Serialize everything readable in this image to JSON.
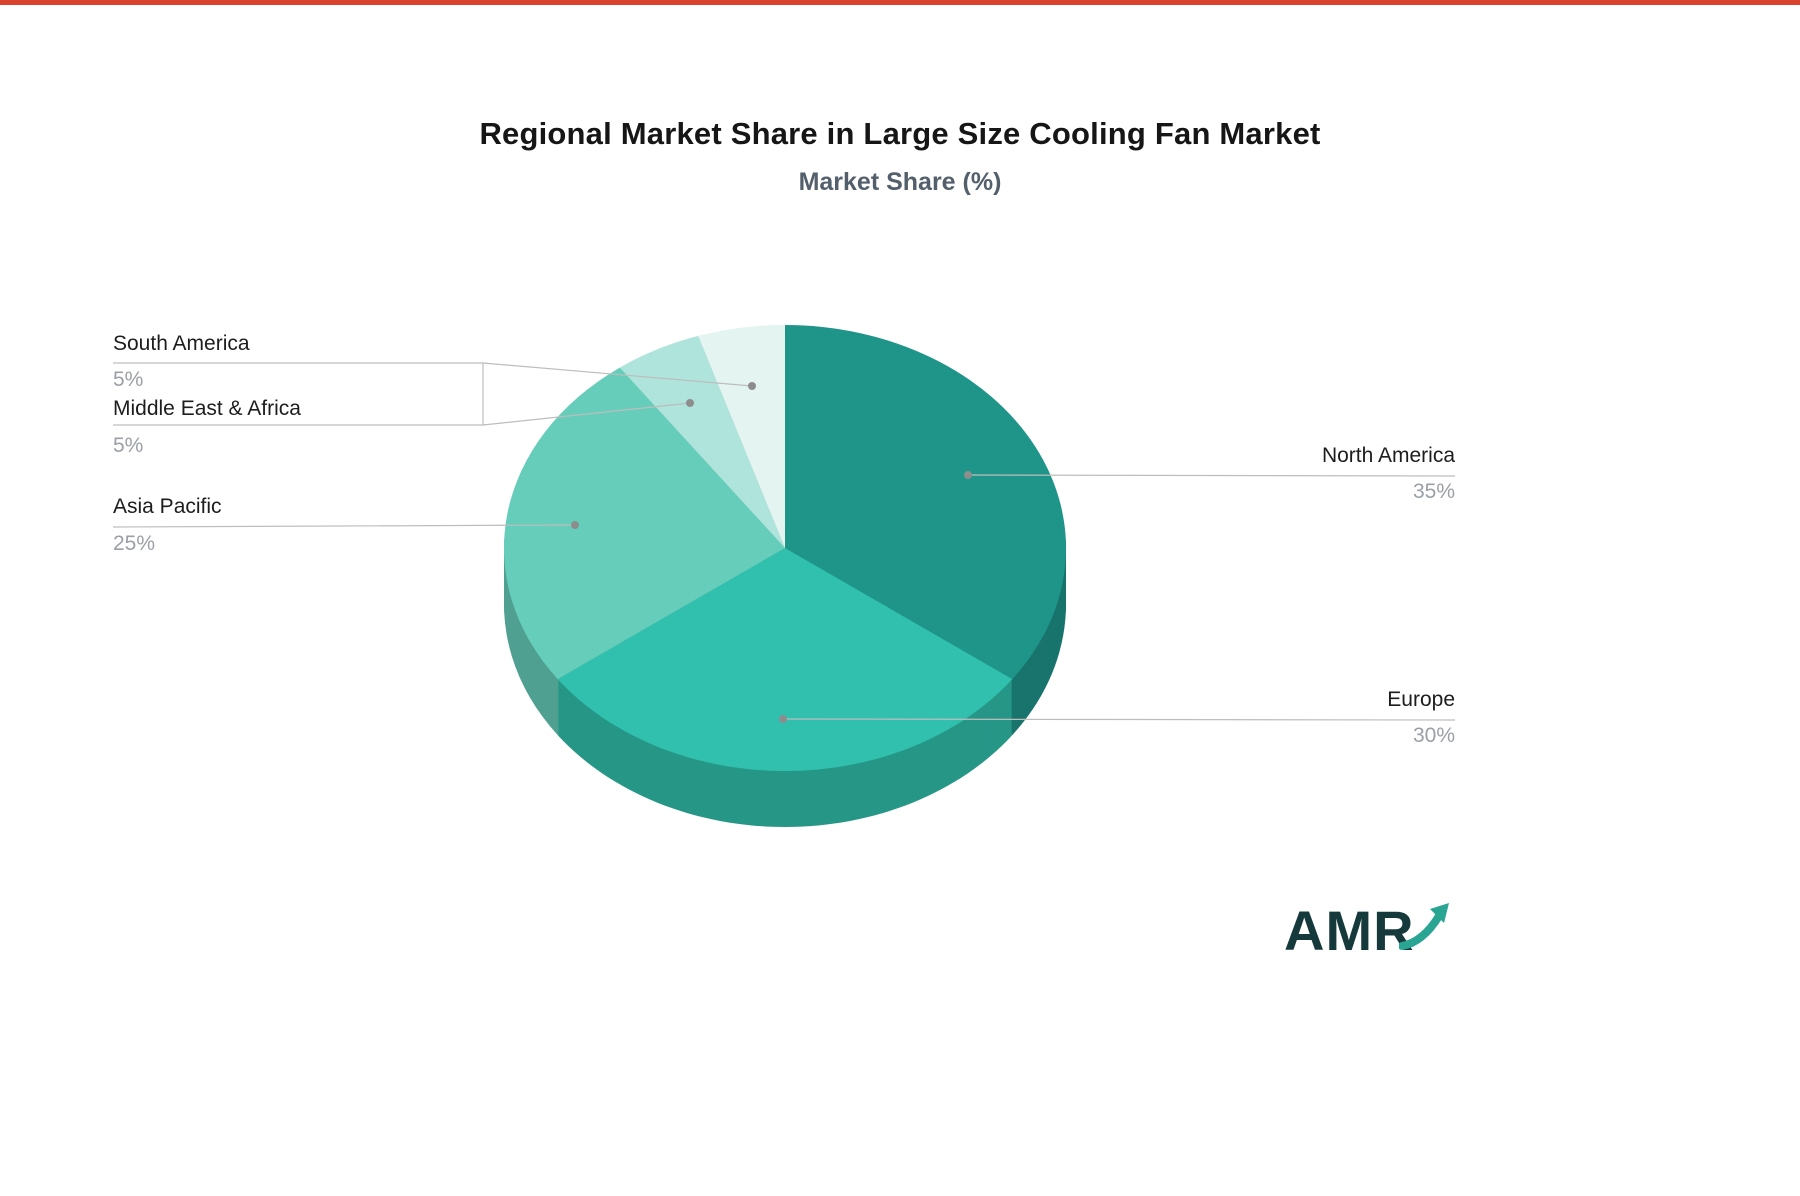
{
  "chart_data": {
    "type": "pie",
    "title": "Regional Market Share in Large Size Cooling Fan Market",
    "subtitle": "Market Share (%)",
    "unit": "%",
    "style": "3d-pie",
    "legend_position": "none",
    "labels_style": "callout-leader-lines",
    "slices": [
      {
        "label": "North America",
        "value": 35,
        "display": "35%",
        "color": "#1f958a"
      },
      {
        "label": "Europe",
        "value": 30,
        "display": "30%",
        "color": "#31c0ad"
      },
      {
        "label": "Asia Pacific",
        "value": 25,
        "display": "25%",
        "color": "#66cdbb"
      },
      {
        "label": "Middle East & Africa",
        "value": 5,
        "display": "5%",
        "color": "#aee4db"
      },
      {
        "label": "South America",
        "value": 5,
        "display": "5%",
        "color": "#e4f4f1"
      }
    ]
  },
  "logo": {
    "text": "AMR"
  },
  "colors": {
    "accent_top_bar": "#d9432f",
    "leader_line": "#bdbdbd",
    "leader_dot": "#8d8d8d",
    "logo_arrow": "#2aa493"
  }
}
